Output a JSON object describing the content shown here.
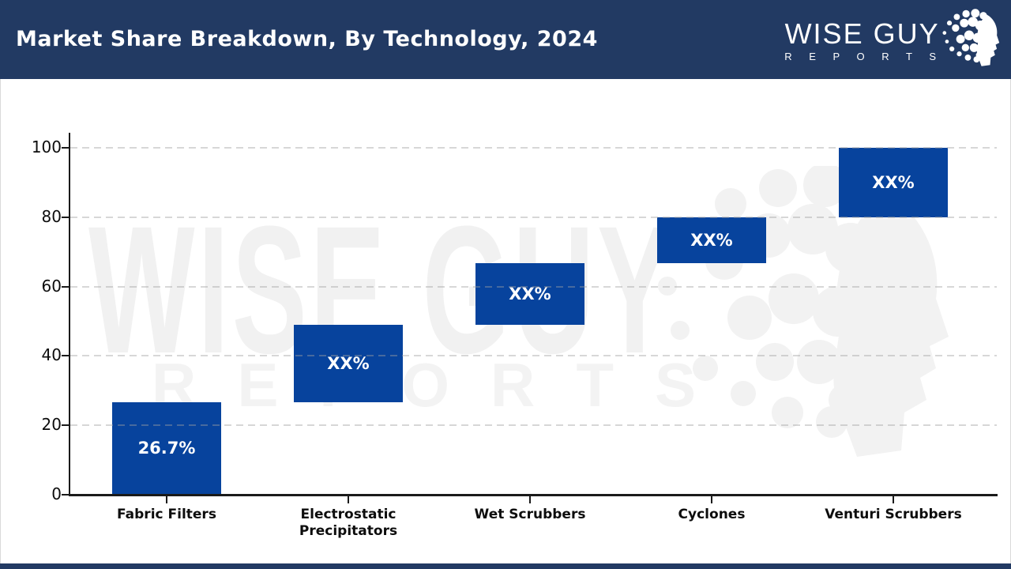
{
  "header": {
    "title": "Market Share Breakdown, By Technology, 2024",
    "logo_line1": "WISE GUY",
    "logo_line2": "R E P O R T S"
  },
  "watermark": {
    "line1": "WISE GUY",
    "line2": "REPORTS"
  },
  "colors": {
    "header_bg": "#223a63",
    "bar": "#07439d",
    "bar_label": "#ffffff",
    "axis_text": "#0d0d0d",
    "gridline": "rgba(160,160,160,0.42)"
  },
  "chart_data": {
    "type": "bar",
    "subtype": "floating-segment-waterfall",
    "title": "Market Share Breakdown, By Technology, 2024",
    "categories": [
      "Fabric Filters",
      "Electrostatic\nPrecipitators",
      "Wet Scrubbers",
      "Cyclones",
      "Venturi Scrubbers"
    ],
    "segments": [
      {
        "category": "Fabric Filters",
        "start": 0,
        "end": 26.7,
        "label": "26.7%"
      },
      {
        "category": "Electrostatic Precipitators",
        "start": 26.7,
        "end": 49,
        "label": "XX%"
      },
      {
        "category": "Wet Scrubbers",
        "start": 49,
        "end": 66.7,
        "label": "XX%"
      },
      {
        "category": "Cyclones",
        "start": 66.7,
        "end": 80,
        "label": "XX%"
      },
      {
        "category": "Venturi Scrubbers",
        "start": 80,
        "end": 100,
        "label": "XX%"
      }
    ],
    "xlabel": "",
    "ylabel": "",
    "ylim": [
      0,
      104
    ],
    "yticks": [
      0,
      20,
      40,
      60,
      80,
      100
    ],
    "grid": "horizontal-dashed",
    "legend": "none"
  }
}
